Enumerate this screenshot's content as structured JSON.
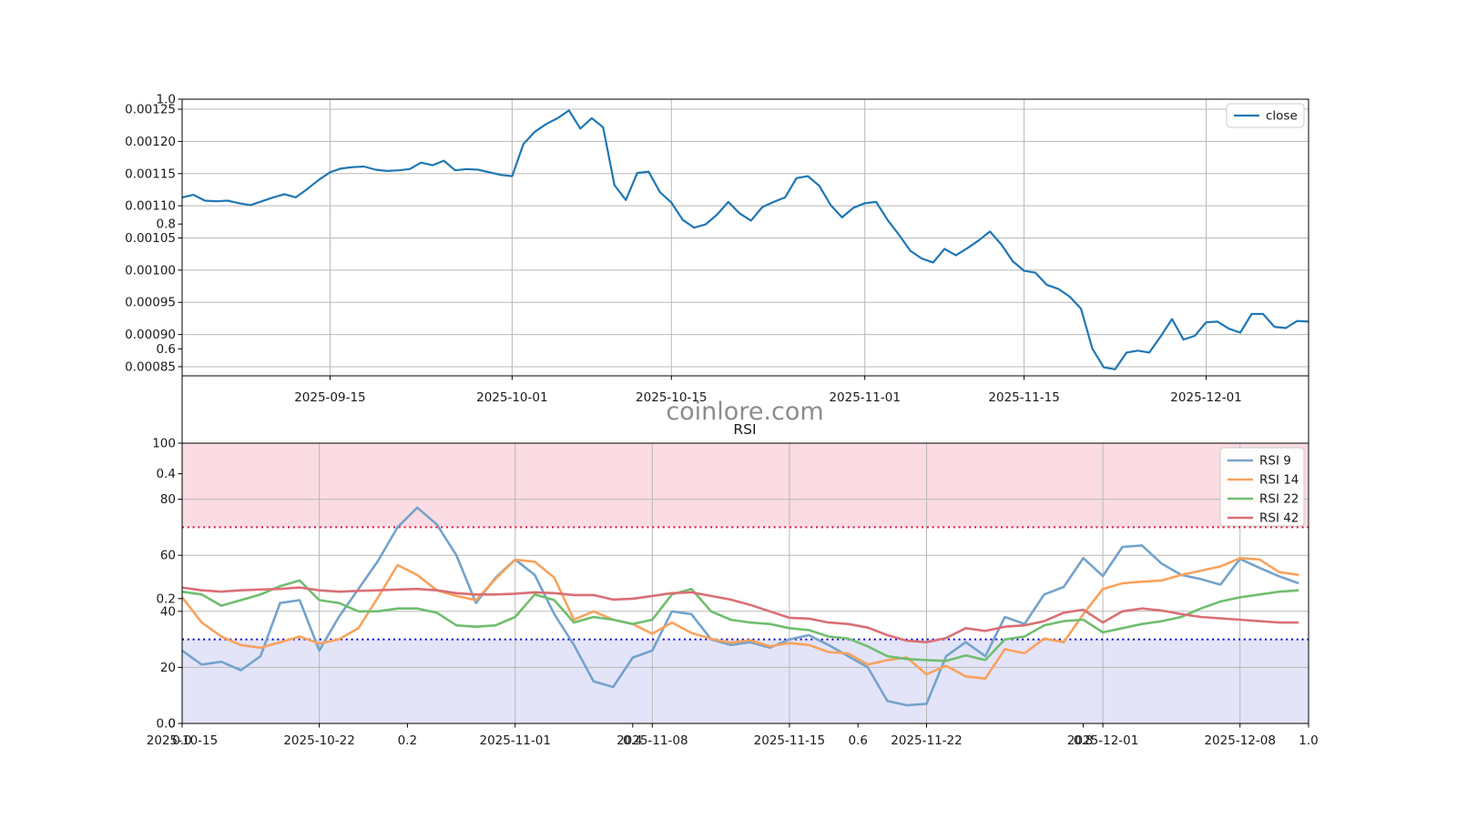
{
  "watermark": "coinlore.com",
  "overlay_axis": {
    "y_labels": [
      "1.0",
      "0.8",
      "0.6",
      "0.4",
      "0.2",
      "0.0"
    ],
    "x_labels": [
      "0.0",
      "0.2",
      "0.4",
      "0.6",
      "0.8",
      "1.0"
    ]
  },
  "chart_data": [
    {
      "type": "line",
      "title": "",
      "legend_position": "upper right",
      "grid": true,
      "ylim": [
        0.0008358,
        0.0012656
      ],
      "y_tick_labels": [
        "0.00085",
        "0.00090",
        "0.00095",
        "0.00100",
        "0.00105",
        "0.00110",
        "0.00115",
        "0.00120",
        "0.00125"
      ],
      "x_span_days": 99,
      "x_ticks": [
        {
          "label": "2025-09-15",
          "day": 13
        },
        {
          "label": "2025-10-01",
          "day": 29
        },
        {
          "label": "2025-10-15",
          "day": 43
        },
        {
          "label": "2025-11-01",
          "day": 60
        },
        {
          "label": "2025-11-15",
          "day": 74
        },
        {
          "label": "2025-12-01",
          "day": 90
        }
      ],
      "series": [
        {
          "name": "close",
          "color": "#1f77b4",
          "values": [
            0.001113,
            0.001117,
            0.001108,
            0.001107,
            0.001108,
            0.001104,
            0.001101,
            0.001107,
            0.001113,
            0.001118,
            0.001113,
            0.001126,
            0.00114,
            0.001152,
            0.001158,
            0.00116,
            0.001161,
            0.001156,
            0.001154,
            0.001155,
            0.001157,
            0.001167,
            0.001163,
            0.00117,
            0.001155,
            0.001157,
            0.001156,
            0.001152,
            0.001148,
            0.001146,
            0.001196,
            0.001215,
            0.001227,
            0.001236,
            0.001248,
            0.00122,
            0.001236,
            0.001222,
            0.001132,
            0.001109,
            0.001151,
            0.001153,
            0.001121,
            0.001105,
            0.001078,
            0.001066,
            0.001071,
            0.001086,
            0.001106,
            0.001088,
            0.001077,
            0.001098,
            0.001106,
            0.001113,
            0.001143,
            0.001146,
            0.001131,
            0.001101,
            0.001082,
            0.001097,
            0.001104,
            0.001106,
            0.001078,
            0.001055,
            0.00103,
            0.001018,
            0.001012,
            0.001033,
            0.001023,
            0.001034,
            0.001046,
            0.00106,
            0.00104,
            0.001014,
            0.000999,
            0.000996,
            0.000977,
            0.000971,
            0.000959,
            0.00094,
            0.000878,
            0.000849,
            0.000846,
            0.000872,
            0.000875,
            0.000872,
            0.000897,
            0.000924,
            0.000892,
            0.000898,
            0.000919,
            0.00092,
            0.000909,
            0.000903,
            0.000932,
            0.000932,
            0.000912,
            0.00091,
            0.000921,
            0.00092
          ]
        }
      ]
    },
    {
      "type": "line",
      "title": "RSI",
      "legend_position": "upper right",
      "grid": true,
      "ylim": [
        0,
        100
      ],
      "y_tick_labels": [
        "0",
        "20",
        "40",
        "60",
        "80",
        "100"
      ],
      "overbought_level": 70,
      "oversold_level": 30,
      "overbought_band_color": "#fadce2",
      "oversold_band_color": "#e4e4f9",
      "overbought_line_color": "#dc143c",
      "oversold_line_color": "#0000cd",
      "x_span_days": 57.5,
      "x_ticks": [
        {
          "label": "2025-10-15",
          "day": 0
        },
        {
          "label": "2025-10-22",
          "day": 7
        },
        {
          "label": "2025-11-01",
          "day": 17
        },
        {
          "label": "2025-11-08",
          "day": 24
        },
        {
          "label": "2025-11-15",
          "day": 31
        },
        {
          "label": "2025-11-22",
          "day": 38
        },
        {
          "label": "2025-12-01",
          "day": 47
        },
        {
          "label": "2025-12-08",
          "day": 54
        }
      ],
      "series": [
        {
          "name": "RSI 9",
          "color": "#73a3cc",
          "values": [
            26,
            21,
            22,
            19,
            24,
            43,
            44,
            26,
            38,
            48,
            58,
            70,
            77,
            71,
            60,
            43,
            52,
            58.5,
            53,
            39,
            28,
            15,
            13,
            23.5,
            26,
            40,
            39,
            30,
            28,
            29,
            27,
            30,
            31.5,
            28,
            24,
            20,
            8,
            6.5,
            7,
            24,
            29,
            24,
            38,
            35.5,
            46,
            48.7,
            59,
            52.6,
            63,
            63.5,
            57,
            53,
            51.5,
            49.5,
            58.7,
            55.5,
            52.5,
            50
          ]
        },
        {
          "name": "RSI 14",
          "color": "#f9a25c",
          "values": [
            45,
            36,
            31,
            28,
            27,
            29,
            31,
            28.5,
            30,
            34,
            45,
            56.5,
            53,
            47.5,
            45.5,
            44,
            51.6,
            58.4,
            57.7,
            52,
            37,
            40,
            37,
            35.5,
            32,
            36,
            32.3,
            30.2,
            28.8,
            29.7,
            27.5,
            28.7,
            28,
            25.5,
            25,
            21,
            22.6,
            23.5,
            17.5,
            20.6,
            16.8,
            16,
            26.5,
            25,
            30.3,
            29,
            39,
            48,
            50,
            50.6,
            51,
            53,
            54.5,
            56,
            59,
            58.5,
            54,
            53
          ]
        },
        {
          "name": "RSI 22",
          "color": "#6fbe6f",
          "values": [
            47,
            46,
            42,
            44,
            46,
            49,
            51,
            44,
            43,
            40,
            40,
            41,
            41,
            39.5,
            35,
            34.5,
            35,
            38,
            46,
            44,
            36,
            38,
            37,
            35.5,
            37,
            46,
            48,
            40,
            37,
            36,
            35.5,
            34,
            33.3,
            31,
            30.3,
            27.5,
            24,
            23,
            22.6,
            22.3,
            24.3,
            22.6,
            30,
            31,
            35,
            36.5,
            37,
            32.5,
            34,
            35.5,
            36.5,
            38,
            41,
            43.5,
            45,
            46,
            47,
            47.5
          ]
        },
        {
          "name": "RSI 42",
          "color": "#da6f74",
          "values": [
            48.5,
            47.5,
            47,
            47.5,
            47.8,
            48,
            48.5,
            47.5,
            47,
            47.3,
            47.5,
            47.8,
            48,
            47.5,
            46.5,
            46,
            46,
            46.3,
            46.8,
            46.5,
            45.8,
            45.8,
            44.2,
            44.5,
            45.5,
            46.5,
            46.8,
            45.5,
            44.2,
            42.3,
            40,
            37.7,
            37.4,
            36,
            35.5,
            34.2,
            31.5,
            29.5,
            29,
            30.5,
            34,
            33,
            34.5,
            35,
            36.5,
            39.5,
            40.6,
            36,
            40,
            41,
            40.3,
            39,
            38,
            37.5,
            37,
            36.5,
            36,
            36
          ]
        }
      ]
    }
  ],
  "style": {
    "grid_color": "#b8b8b8",
    "spine_color": "#000000",
    "legend_border_color": "#cccccc",
    "legend_fill_color": "#ffffff"
  }
}
